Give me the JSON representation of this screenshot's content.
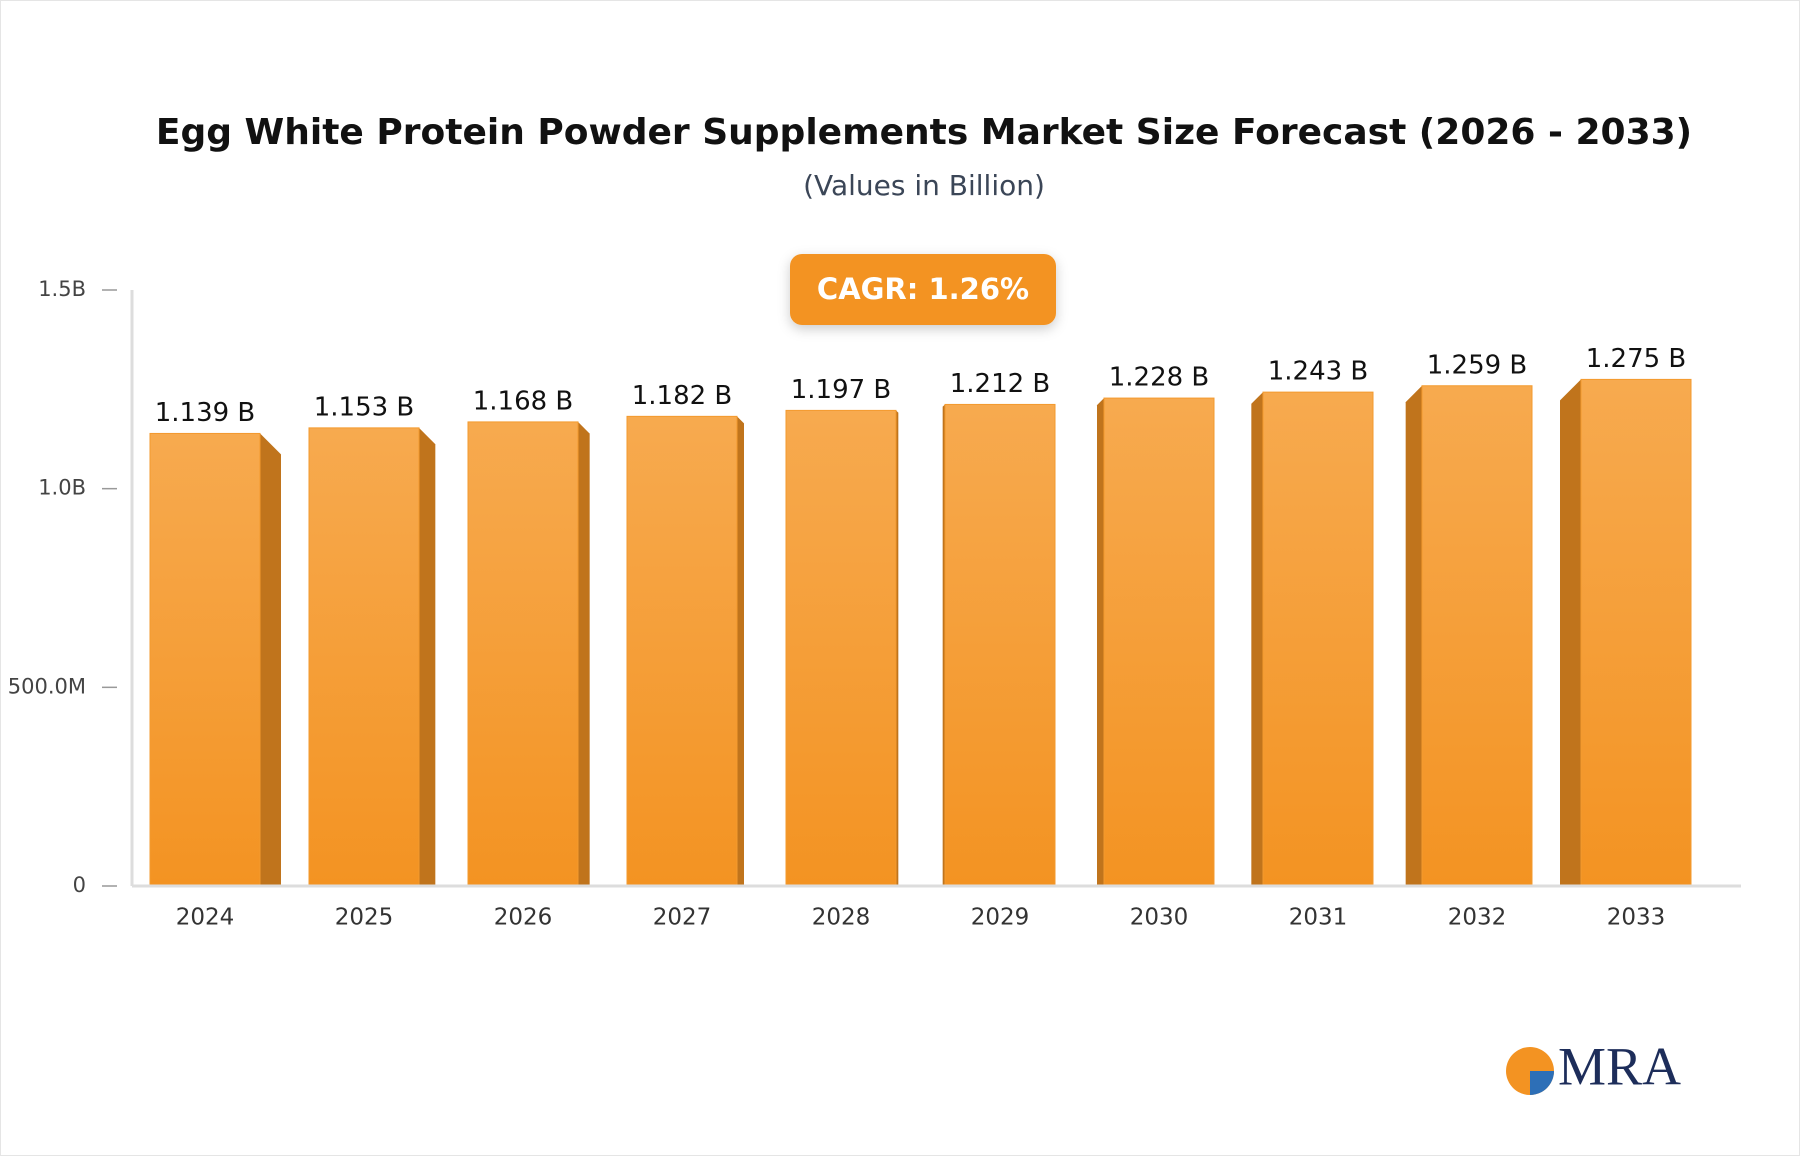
{
  "chart_data": {
    "type": "bar",
    "title": "Egg White Protein Powder Supplements Market Size Forecast (2026 - 2033)",
    "subtitle": "(Values in Billion)",
    "annotation": "CAGR: 1.26%",
    "categories": [
      "2024",
      "2025",
      "2026",
      "2027",
      "2028",
      "2029",
      "2030",
      "2031",
      "2032",
      "2033"
    ],
    "values": [
      1.139,
      1.153,
      1.168,
      1.182,
      1.197,
      1.212,
      1.228,
      1.243,
      1.259,
      1.275
    ],
    "value_labels": [
      "1.139 B",
      "1.153 B",
      "1.168 B",
      "1.182 B",
      "1.197 B",
      "1.212 B",
      "1.228 B",
      "1.243 B",
      "1.259 B",
      "1.275 B"
    ],
    "color": "#f39a2e",
    "ylim": [
      0,
      1.5
    ],
    "yticks": [
      0,
      {
        "value": 0.5,
        "label": "500.0M"
      },
      {
        "value": 1,
        "label": "1.0B"
      },
      {
        "value": 1.5,
        "label": "1.5B"
      }
    ],
    "grid": false
  },
  "logo": "MRA"
}
